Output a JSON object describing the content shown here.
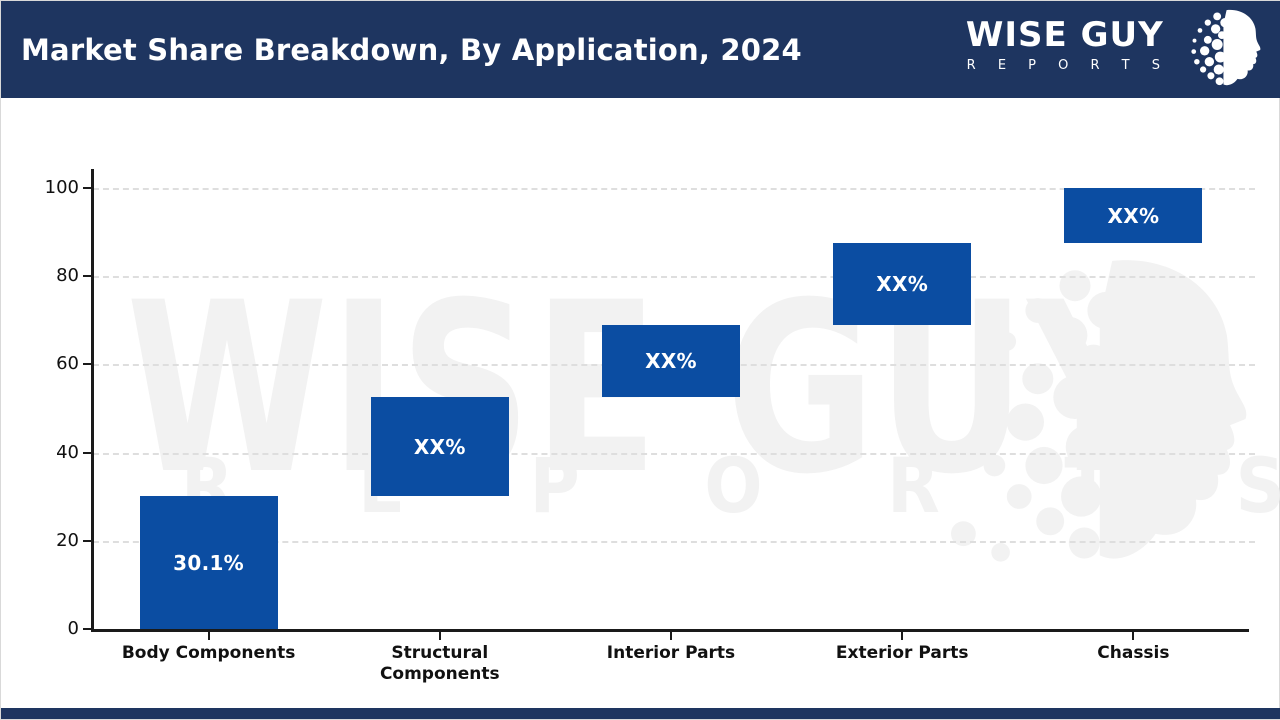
{
  "header": {
    "title": "Market Share Breakdown, By Application, 2024",
    "bg_color": "#1e3560",
    "logo": {
      "line1": "WISE GUY",
      "line2": "R E P O R T S"
    }
  },
  "watermark": {
    "line1": "WISE GUY",
    "line2": "R E P O R T S"
  },
  "chart_data": {
    "type": "bar",
    "subtype": "waterfall",
    "title": "Market Share Breakdown, By Application, 2024",
    "categories": [
      "Body Components",
      "Structural Components",
      "Interior Parts",
      "Exterior Parts",
      "Chassis"
    ],
    "series": [
      {
        "name": "Market Share (%)",
        "bars": [
          {
            "category": "Body Components",
            "start": 0,
            "end": 30.1,
            "label": "30.1%"
          },
          {
            "category": "Structural Components",
            "start": 30.1,
            "end": 52.5,
            "label": "XX%"
          },
          {
            "category": "Interior Parts",
            "start": 52.5,
            "end": 69,
            "label": "XX%"
          },
          {
            "category": "Exterior Parts",
            "start": 69,
            "end": 87.5,
            "label": "XX%"
          },
          {
            "category": "Chassis",
            "start": 87.5,
            "end": 100,
            "label": "XX%"
          }
        ]
      }
    ],
    "xlabel": "",
    "ylabel": "",
    "ylim": [
      0,
      105
    ],
    "yticks": [
      0,
      20,
      40,
      60,
      80,
      100
    ],
    "grid": "horizontal-dashed",
    "legend": "none",
    "colors": {
      "bar": "#0b4da2",
      "bar_label": "#ffffff",
      "axis": "#1a1a1a",
      "grid": "#dedede",
      "header": "#1e3560",
      "watermark": "#f2f2f2"
    }
  }
}
